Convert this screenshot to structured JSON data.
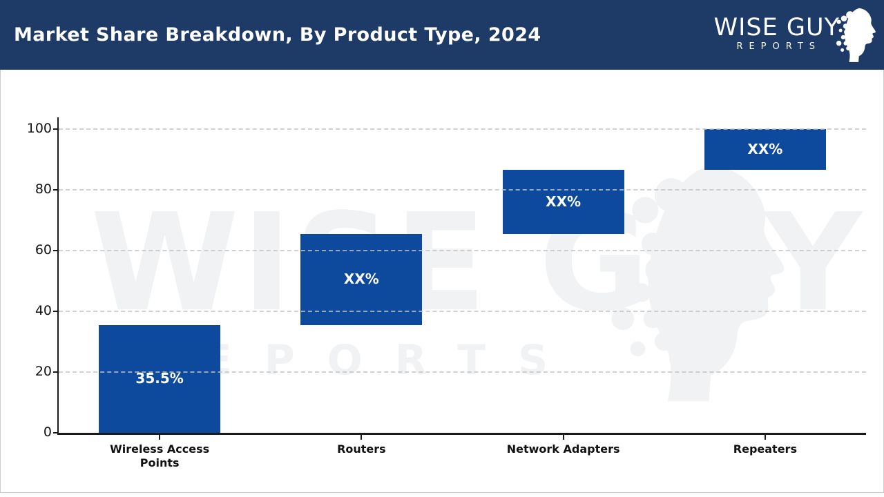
{
  "header": {
    "title": "Market Share Breakdown, By Product Type, 2024",
    "brand": {
      "name": "WISE GUY",
      "sub": "REPORTS"
    },
    "bg_color": "#1e3a66"
  },
  "watermark": {
    "line1": "WISE GUY",
    "line2": "REPORTS"
  },
  "chart_data": {
    "type": "bar",
    "subtype": "stepped-waterfall-segments",
    "title": "Market Share Breakdown, By Product Type, 2024",
    "categories": [
      "Wireless Access Points",
      "Routers",
      "Network Adapters",
      "Repeaters"
    ],
    "segments": [
      {
        "category": "Wireless Access Points",
        "start": 0,
        "end": 35.5,
        "label": "35.5%"
      },
      {
        "category": "Routers",
        "start": 35.5,
        "end": 65.5,
        "label": "XX%"
      },
      {
        "category": "Network Adapters",
        "start": 65.5,
        "end": 86.5,
        "label": "XX%"
      },
      {
        "category": "Repeaters",
        "start": 86.5,
        "end": 100,
        "label": "XX%"
      }
    ],
    "ylabel": "",
    "xlabel": "",
    "ylim": [
      0,
      100
    ],
    "yticks": [
      0,
      20,
      40,
      60,
      80,
      100
    ],
    "grid": "dashed-horizontal",
    "legend": "none",
    "bar_color": "#0d4a9e",
    "bar_label_color": "#ffffff"
  }
}
